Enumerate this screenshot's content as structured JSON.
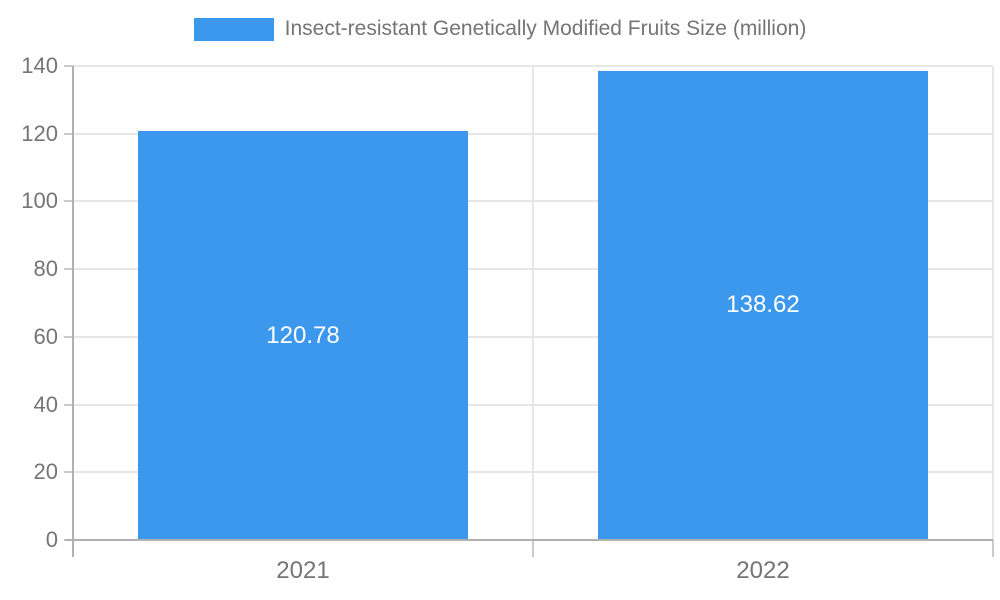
{
  "colors": {
    "bar": "#3C98EC",
    "grid": "#E7E7E7",
    "axis": "#B0B0B0",
    "tick": "#CACACA",
    "label_text": "#757575",
    "value_text": "#FFFFFF",
    "background": "#FFFFFF"
  },
  "chart_data": {
    "type": "bar",
    "title": "Insect-resistant Genetically Modified Fruits Size (million)",
    "categories": [
      "2021",
      "2022"
    ],
    "series": [
      {
        "name": "Insect-resistant Genetically Modified Fruits Size (million)",
        "values": [
          120.78,
          138.62
        ]
      }
    ],
    "value_labels": [
      "120.78",
      "138.62"
    ],
    "xlabel": "",
    "ylabel": "",
    "ylim": [
      0,
      140
    ],
    "yticks": [
      0,
      20,
      40,
      60,
      80,
      100,
      120,
      140
    ],
    "grid": true,
    "legend_position": "top"
  }
}
